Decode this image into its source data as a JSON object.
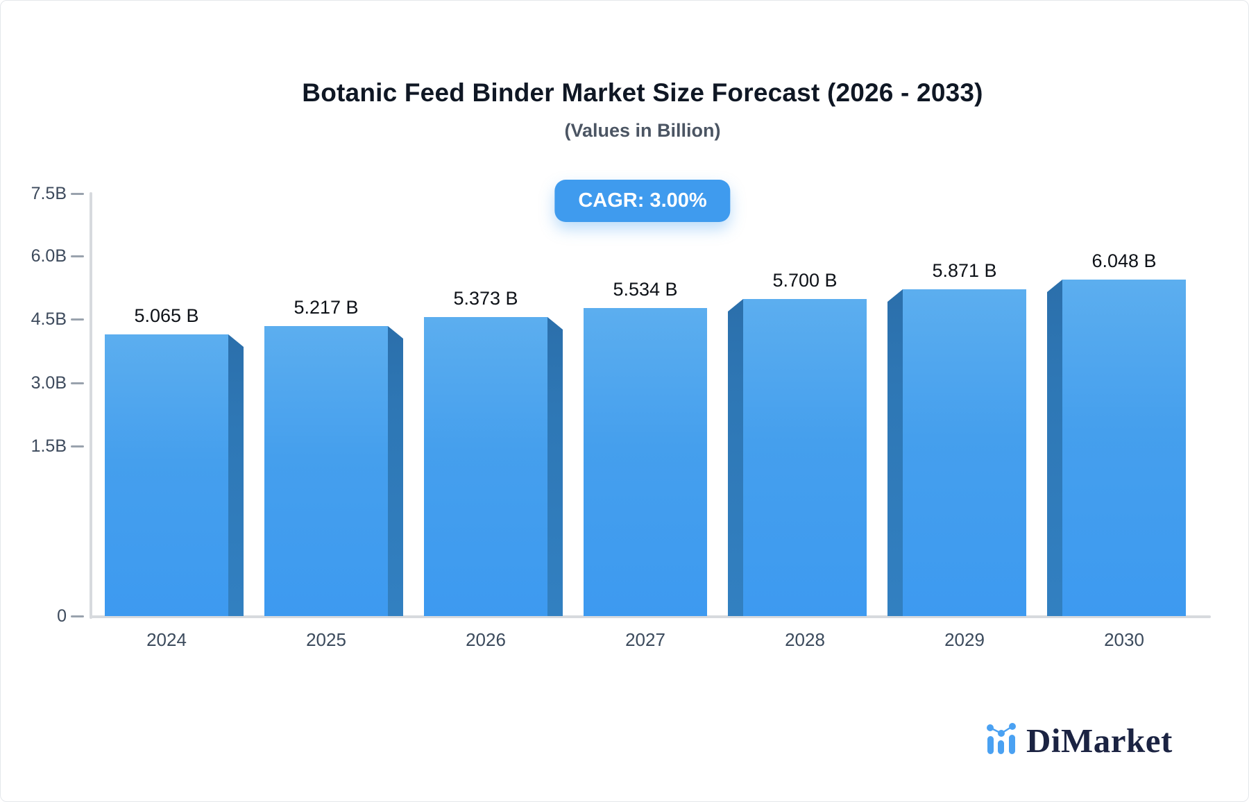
{
  "header": {
    "title": "Botanic Feed Binder Market Size Forecast (2026 - 2033)",
    "subtitle": "(Values in Billion)",
    "badge_label": "CAGR: 3.00%"
  },
  "chart_data": {
    "type": "bar",
    "title": "Botanic Feed Binder Market Size Forecast (2026 - 2033)",
    "subtitle": "(Values in Billion)",
    "cagr_badge": "CAGR: 3.00%",
    "categories": [
      "2024",
      "2025",
      "2026",
      "2027",
      "2028",
      "2029",
      "2030"
    ],
    "values": [
      5.065,
      5.217,
      5.373,
      5.534,
      5.7,
      5.871,
      6.048
    ],
    "value_labels": [
      "5.065 B",
      "5.217 B",
      "5.373 B",
      "5.534 B",
      "5.700 B",
      "5.871 B",
      "6.048 B"
    ],
    "xlabel": "",
    "ylabel": "",
    "ylim": [
      0,
      7.5
    ],
    "y_tick_labels": [
      "7.5B",
      "6.0B",
      "4.5B",
      "3.0B",
      "1.5B",
      "0"
    ],
    "y_tick_values": [
      7.5,
      6.0,
      4.5,
      3.0,
      1.5,
      0
    ],
    "grid": "off",
    "legend": "none",
    "bar_style": "3d-extruded",
    "colors": {
      "bar_face_top": "#5caeef",
      "bar_face_bottom": "#3d9af0",
      "bar_side": "#2e77b5",
      "axis_line": "#d7dade",
      "tick_dash": "#99a2ad",
      "tick_text": "#3d4a5c",
      "value_text": "#0d1117",
      "badge_bg": "#3f9bee",
      "badge_text": "#ffffff"
    }
  },
  "logo": {
    "text": "DiMarket",
    "icon": "bar-chart-logo-icon",
    "text_color": "#1b2342",
    "icon_color": "#4aa1f2"
  }
}
